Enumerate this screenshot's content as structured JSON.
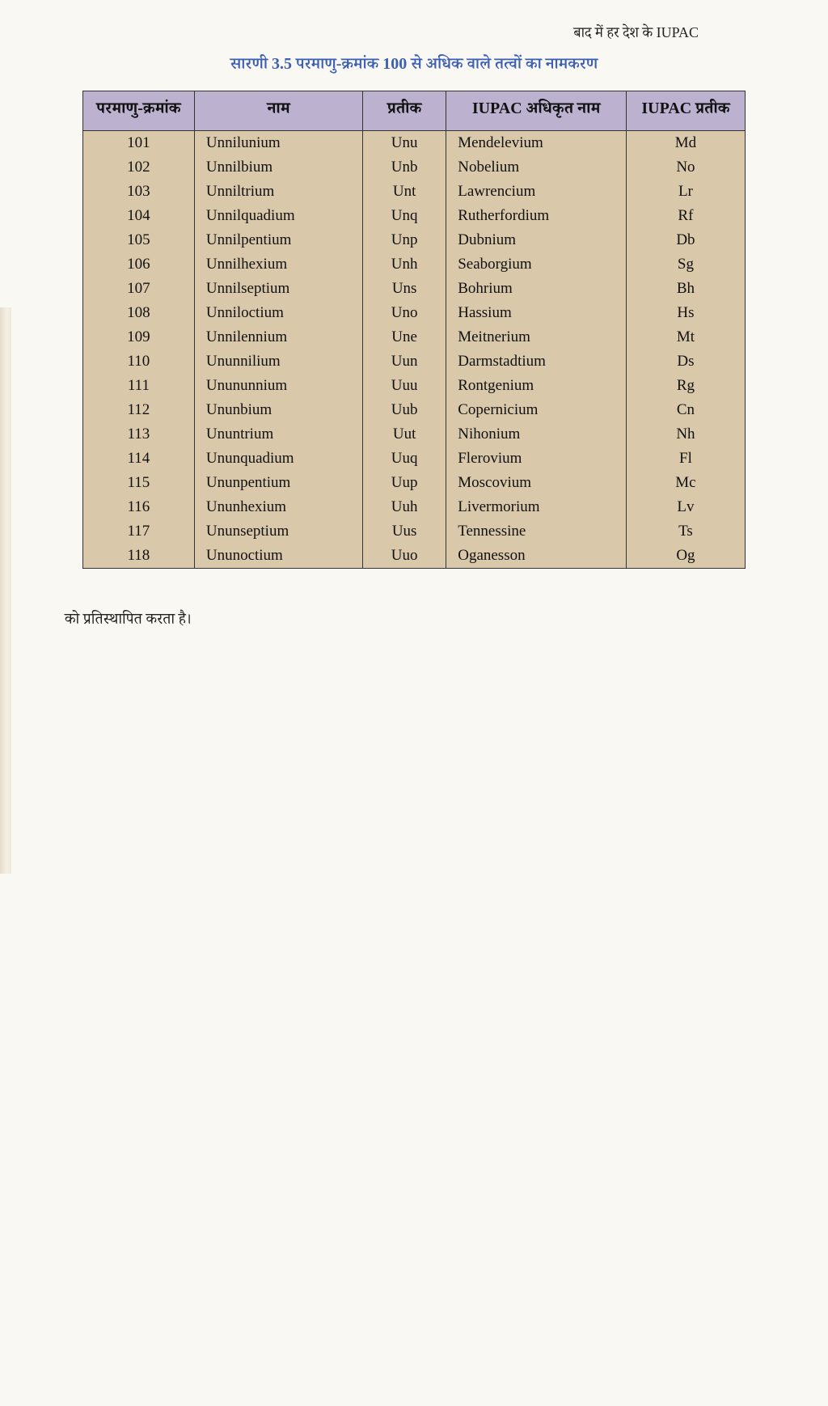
{
  "top_line": "सारणी 3.5 परमाणु-क्रमांक 100 से अधिक वाले तत्वों का नामकरण",
  "caption_prefix": "बाद में हर देश के IUPAC",
  "below_text": "को प्रतिस्थापित करता है।",
  "table": {
    "columns": [
      "परमाणु-क्रमांक",
      "नाम",
      "प्रतीक",
      "IUPAC अधिकृत नाम",
      "IUPAC प्रतीक"
    ],
    "col_classes": [
      "col-num",
      "col-name",
      "col-sym",
      "col-iname",
      "col-isym"
    ],
    "header_bg": "#bcb2cf",
    "body_bg": "#d9c8a9",
    "border_color": "#333333",
    "rows": [
      [
        "101",
        "Unnilunium",
        "Unu",
        "Mendelevium",
        "Md"
      ],
      [
        "102",
        "Unnilbium",
        "Unb",
        "Nobelium",
        "No"
      ],
      [
        "103",
        "Unniltrium",
        "Unt",
        "Lawrencium",
        "Lr"
      ],
      [
        "104",
        "Unnilquadium",
        "Unq",
        "Rutherfordium",
        "Rf"
      ],
      [
        "105",
        "Unnilpentium",
        "Unp",
        "Dubnium",
        "Db"
      ],
      [
        "106",
        "Unnilhexium",
        "Unh",
        "Seaborgium",
        "Sg"
      ],
      [
        "107",
        "Unnilseptium",
        "Uns",
        "Bohrium",
        "Bh"
      ],
      [
        "108",
        "Unniloctium",
        "Uno",
        "Hassium",
        "Hs"
      ],
      [
        "109",
        "Unnilennium",
        "Une",
        "Meitnerium",
        "Mt"
      ],
      [
        "110",
        "Ununnilium",
        "Uun",
        "Darmstadtium",
        "Ds"
      ],
      [
        "111",
        "Unununnium",
        "Uuu",
        "Rontgenium",
        "Rg"
      ],
      [
        "112",
        "Ununbium",
        "Uub",
        "Copernicium",
        "Cn"
      ],
      [
        "113",
        "Ununtrium",
        "Uut",
        "Nihonium",
        "Nh"
      ],
      [
        "114",
        "Ununquadium",
        "Uuq",
        "Flerovium",
        "Fl"
      ],
      [
        "115",
        "Ununpentium",
        "Uup",
        "Moscovium",
        "Mc"
      ],
      [
        "116",
        "Ununhexium",
        "Uuh",
        "Livermorium",
        "Lv"
      ],
      [
        "117",
        "Ununseptium",
        "Uus",
        "Tennessine",
        "Ts"
      ],
      [
        "118",
        "Ununoctium",
        "Uuo",
        "Oganesson",
        "Og"
      ]
    ]
  },
  "colors": {
    "page_bg": "#faf8f2",
    "caption_color": "#3b5fb3",
    "text_color": "#111111"
  },
  "fonts": {
    "body_family": "Times New Roman / Noto Serif Devanagari",
    "header_size_pt": 15,
    "cell_size_pt": 14,
    "caption_size_pt": 15
  }
}
